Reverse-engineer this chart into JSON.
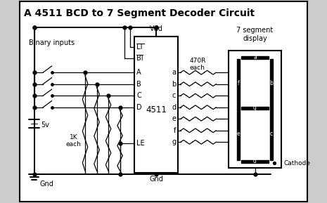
{
  "title": "A 4511 BCD to 7 Segment Decoder Circuit",
  "bg_color": "#ffffff",
  "border_color": "#000000",
  "fig_bg": "#cccccc",
  "title_fontsize": 10,
  "label_fontsize": 7,
  "small_fontsize": 6.5,
  "ic_label": "4511",
  "ic_pins_left": [
    "LT",
    "BI",
    "A",
    "B",
    "C",
    "D",
    "LE"
  ],
  "ic_pins_right": [
    "a",
    "b",
    "c",
    "d",
    "e",
    "f",
    "g"
  ],
  "vdd_label": "Vdd",
  "gnd_label": "Gnd",
  "resistor_label_1k": "1K\neach",
  "resistor_label_470": "470R\neach",
  "segment_label": "7 segment\ndisplay",
  "binary_inputs_label": "Binary inputs",
  "voltage_label": "5v",
  "cathode_label": "Cathode",
  "segment_letters": [
    "a",
    "b",
    "c",
    "d",
    "e",
    "f",
    "g"
  ]
}
